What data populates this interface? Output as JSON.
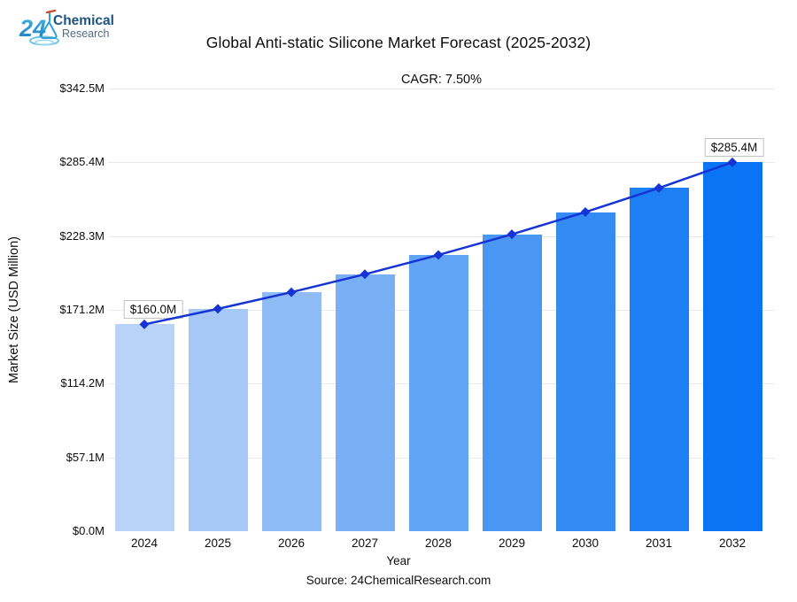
{
  "brand": {
    "number": "24",
    "name_top": "Chemical",
    "name_bottom": "Research",
    "number_color_top": "#45b4e6",
    "number_color_bottom": "#1a7fc0",
    "flask_color": "#2f9fd4",
    "flask_accent_color": "#cc4b28",
    "name_top_color": "#1c5380",
    "name_bottom_color": "#4e6b82"
  },
  "header": {
    "title": "Global Anti-static Silicone Market Forecast (2025-2032)",
    "subtitle": "CAGR: 7.50%"
  },
  "chart_data": {
    "type": "bar",
    "overlay": "line",
    "title": "Global Anti-static Silicone Market Forecast (2025-2032)",
    "subtitle": "CAGR: 7.50%",
    "xlabel": "Year",
    "ylabel": "Market Size (USD Million)",
    "categories": [
      "2024",
      "2025",
      "2026",
      "2027",
      "2028",
      "2029",
      "2030",
      "2031",
      "2032"
    ],
    "values": [
      160.0,
      172.0,
      184.9,
      198.8,
      213.7,
      229.7,
      246.9,
      265.5,
      285.4
    ],
    "ylim": [
      0,
      342.5
    ],
    "yticks": {
      "values": [
        0,
        57.1,
        114.2,
        171.2,
        228.3,
        285.4,
        342.5
      ],
      "labels": [
        "$0.0M",
        "$57.1M",
        "$114.2M",
        "$171.2M",
        "$228.3M",
        "$285.4M",
        "$342.5M"
      ]
    },
    "grid": "horizontal",
    "legend": "none",
    "bar_colors": [
      "#b9d3f8",
      "#a5c8f7",
      "#8fbcf6",
      "#78aff5",
      "#61a3f4",
      "#4997f3",
      "#338bf3",
      "#1c7ff3",
      "#0a74f5"
    ],
    "line_color": "#1634d4",
    "annotations": [
      {
        "category": "2024",
        "text": "$160.0M",
        "dx": 10
      },
      {
        "category": "2032",
        "text": "$285.4M",
        "dx": 2
      }
    ]
  },
  "footer": {
    "source": "Source: 24ChemicalResearch.com"
  }
}
